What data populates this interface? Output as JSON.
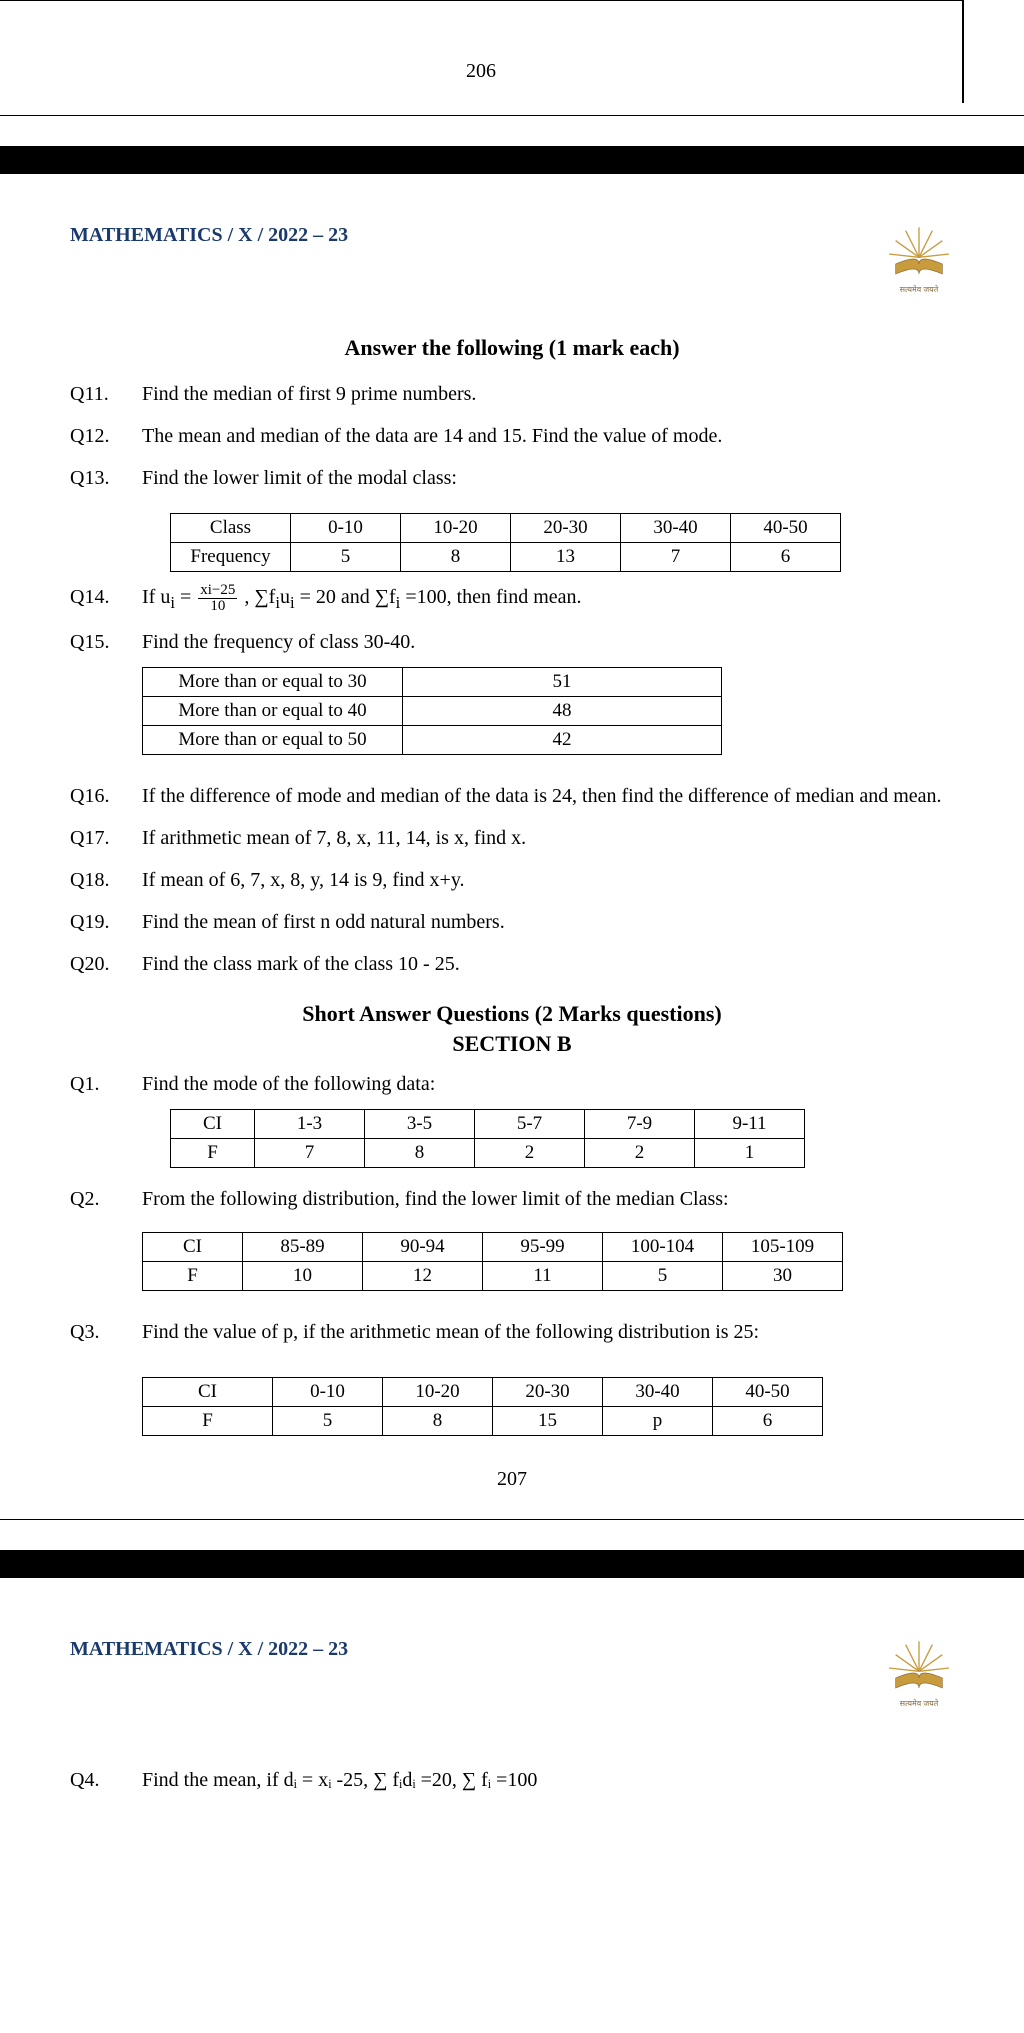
{
  "page_top_number": "206",
  "page_bottom_number": "207",
  "course_title": "MATHEMATICS / X / 2022 – 23",
  "heading1": "Answer the following (1 mark each)",
  "heading2": "Short Answer Questions (2 Marks questions)",
  "heading2_sub": "SECTION B",
  "logo_caption": "सत्यमेव जयते",
  "colors": {
    "title": "#1a3a6e",
    "text": "#000000",
    "bg": "#ffffff"
  },
  "questionsA": [
    {
      "num": "Q11.",
      "text": "Find the median of first 9 prime numbers."
    },
    {
      "num": "Q12.",
      "text": "The mean and median of the data are 14 and 15. Find the value of mode."
    },
    {
      "num": "Q13.",
      "text": "Find the lower limit of the modal class:"
    }
  ],
  "table_q13": {
    "rows": [
      [
        "Class",
        "0-10",
        "10-20",
        "20-30",
        "30-40",
        "40-50"
      ],
      [
        "Frequency",
        "5",
        "8",
        "13",
        "7",
        "6"
      ]
    ]
  },
  "q14": {
    "num": "Q14.",
    "prefix": "If  u",
    "sub": "i",
    "eq": " = ",
    "frac_num": "xi−25",
    "frac_den": "10",
    "mid": " , ∑f",
    "mid2": "u",
    "mid3": " = 20 and ∑f",
    "mid4": " =100, then find mean."
  },
  "q15": {
    "num": "Q15.",
    "text": "Find the frequency of class 30-40."
  },
  "table_q15": {
    "rows": [
      [
        "More than or equal to 30",
        "51"
      ],
      [
        "More than or equal to 40",
        "48"
      ],
      [
        "More than or equal to 50",
        "42"
      ]
    ]
  },
  "questionsA2": [
    {
      "num": "Q16.",
      "text": "If the difference of mode and median of the data is 24, then find the difference of median and mean."
    },
    {
      "num": "Q17.",
      "text": "If arithmetic mean of 7, 8, x, 11, 14, is x, find x."
    },
    {
      "num": "Q18.",
      "text": "If mean of 6, 7, x, 8, y, 14 is 9, find x+y."
    },
    {
      "num": "Q19.",
      "text": "Find the mean of first n odd natural numbers."
    },
    {
      "num": "Q20.",
      "text": "Find the class mark of the class 10 - 25."
    }
  ],
  "qB1": {
    "num": "Q1.",
    "text": "Find the mode of the following data:"
  },
  "table_q1": {
    "rows": [
      [
        "CI",
        "1-3",
        "3-5",
        "5-7",
        "7-9",
        "9-11"
      ],
      [
        "F",
        "7",
        "8",
        "2",
        "2",
        "1"
      ]
    ]
  },
  "qB2": {
    "num": "Q2.",
    "text": "From the following distribution, find the lower limit of the median Class:"
  },
  "table_q2": {
    "rows": [
      [
        "CI",
        "85-89",
        "90-94",
        "95-99",
        "100-104",
        "105-109"
      ],
      [
        "F",
        "10",
        "12",
        "11",
        "5",
        "30"
      ]
    ]
  },
  "qB3": {
    "num": "Q3.",
    "text": "Find the value of p, if the arithmetic mean of the following distribution is 25:"
  },
  "table_q3": {
    "rows": [
      [
        "CI",
        "0-10",
        "10-20",
        "20-30",
        "30-40",
        "40-50"
      ],
      [
        "F",
        "5",
        "8",
        "15",
        "p",
        "6"
      ]
    ]
  },
  "partial_q": {
    "num": "Q4.",
    "text": "Find the mean, if dᵢ = xᵢ -25, ∑ fᵢdᵢ =20, ∑ fᵢ =100"
  }
}
